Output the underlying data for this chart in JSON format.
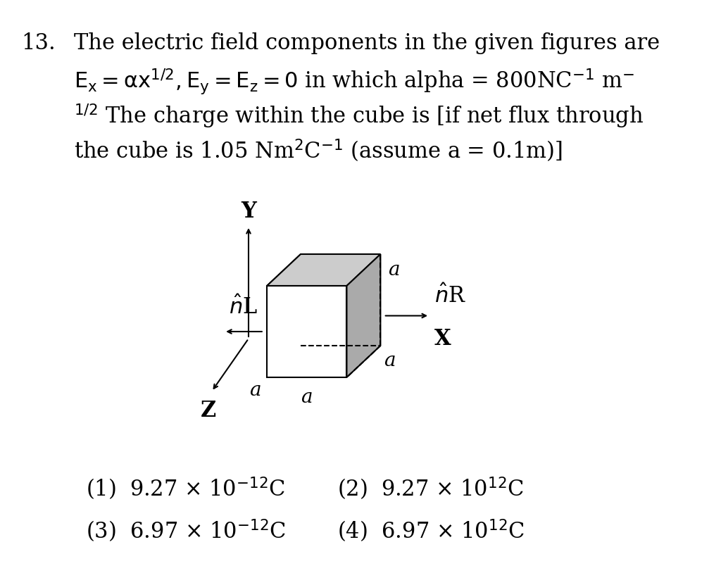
{
  "background_color": "#ffffff",
  "question_number": "13.",
  "title_line1": "The electric field components in the given figures are",
  "title_line2": "E$_x$ = αx$^{1/2}$, E$_y$ = E$_z$ = 0 in which alpha = 800NC$^{-1}$ m$^{-}$",
  "title_line3": "$^{1/2}$ The charge within the cube is [if net flux through",
  "title_line4": "the cube is 1.05 Nm$^2$C$^{-1}$ (assume a = 0.1m)]",
  "options": [
    "(1)  9.27 × 10$^{-12}$C",
    "(2)  9.27 × 10$^{12}$C",
    "(3)  6.97 × 10$^{-12}$C",
    "(4)  6.97 × 10$^{12}$C"
  ],
  "font_size_question": 22,
  "font_size_options": 22,
  "text_color": "#000000"
}
